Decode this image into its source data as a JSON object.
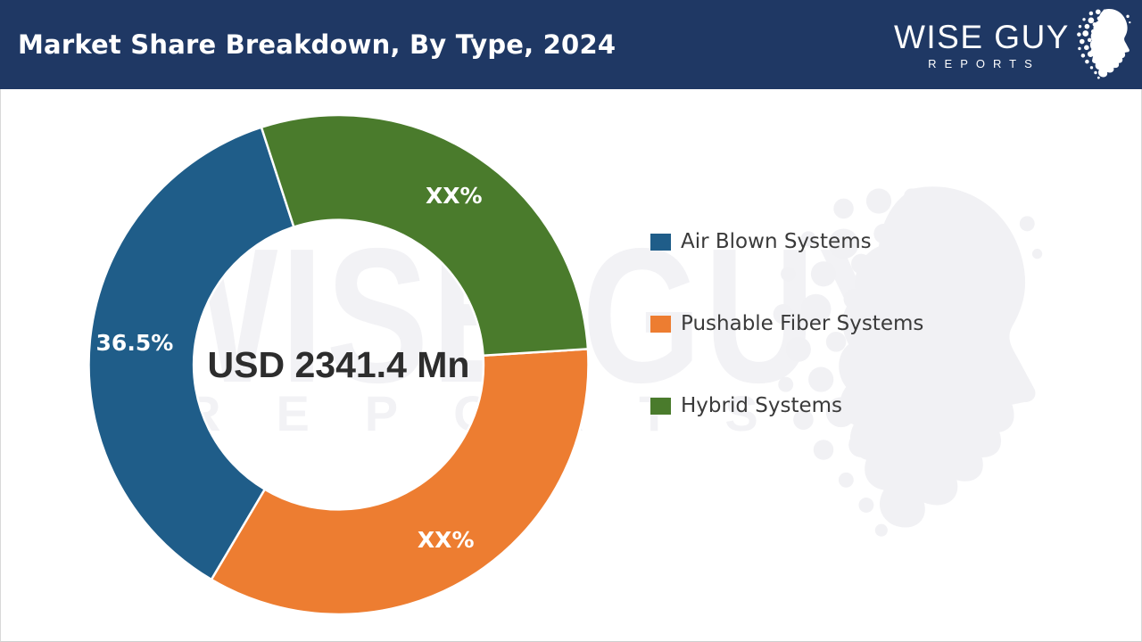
{
  "header": {
    "logo": {
      "line1": "WISE GUY",
      "line2": "REPORTS"
    }
  },
  "watermark": {
    "line1": "WISE GUY",
    "line2": "REPORTS"
  },
  "chart_data": {
    "type": "pie",
    "subtype": "donut",
    "title": "Market Share Breakdown, By Type, 2024",
    "center_label": "USD 2341.4 Mn",
    "start_angle_deg": 108,
    "direction": "counterclockwise",
    "inner_radius_ratio": 0.58,
    "legend_position": "right",
    "categories": [
      "Air Blown Systems",
      "Pushable Fiber Systems",
      "Hybrid Systems"
    ],
    "series": [
      {
        "name": "Air Blown Systems",
        "display_label": "36.5%",
        "value_pct": 36.5,
        "estimated": false,
        "color": "#1f5d89"
      },
      {
        "name": "Pushable Fiber Systems",
        "display_label": "XX%",
        "value_pct": 34.5,
        "estimated": true,
        "color": "#ed7d31"
      },
      {
        "name": "Hybrid Systems",
        "display_label": "XX%",
        "value_pct": 29.0,
        "estimated": true,
        "color": "#4a7b2c"
      }
    ],
    "colors": {
      "header_bar": "#1f3864",
      "center_text": "#2d2d2d",
      "legend_text": "#3a3a3a",
      "watermark": "#f2f2f5",
      "slice_label_text": "#ffffff"
    }
  }
}
